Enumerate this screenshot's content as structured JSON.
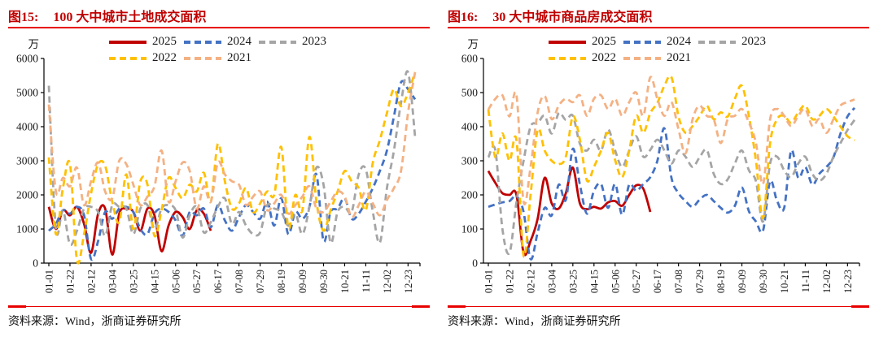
{
  "colors": {
    "title_red": "#C00000",
    "rule_red": "#E80000",
    "axis_black": "#000000",
    "series_2025": "#C00000",
    "series_2024": "#4472C4",
    "series_2023": "#A5A5A5",
    "series_2022": "#FFC000",
    "series_2021": "#F4B183"
  },
  "chart_data": [
    {
      "type": "line",
      "fig_label": "图15:",
      "title": "100 大中城市土地成交面积",
      "unit": "万",
      "source": "资料来源：Wind，浙商证券研究所",
      "ylim": [
        0,
        6000
      ],
      "ytick_step": 1000,
      "grid": false,
      "legend_position": "top-center",
      "weeks_per_tick": 3,
      "x_tick_labels": [
        "01-01",
        "01-22",
        "02-12",
        "03-04",
        "03-25",
        "04-15",
        "05-06",
        "05-27",
        "06-17",
        "07-08",
        "07-29",
        "08-19",
        "09-09",
        "09-30",
        "10-21",
        "11-11",
        "12-02",
        "12-23"
      ],
      "legend_rows": [
        [
          "2025",
          "2024",
          "2023"
        ],
        [
          "2022",
          "2021"
        ]
      ],
      "series": [
        {
          "name": "2025",
          "color": "#C00000",
          "dashed": false,
          "values": [
            1650,
            1000,
            1550,
            1400,
            1650,
            1150,
            300,
            1450,
            1600,
            250,
            1450,
            1600,
            1500,
            950,
            1600,
            1400,
            350,
            1100,
            1500,
            1350,
            1000,
            1550,
            1450,
            950
          ]
        },
        {
          "name": "2024",
          "color": "#4472C4",
          "dashed": true,
          "values": [
            950,
            1150,
            1550,
            1450,
            1650,
            1400,
            120,
            650,
            1500,
            1300,
            1600,
            1650,
            1500,
            1000,
            850,
            1450,
            1600,
            1500,
            1250,
            800,
            1500,
            1400,
            1600,
            1050,
            1700,
            1250,
            950,
            1350,
            1700,
            1500,
            1300,
            1800,
            1100,
            1900,
            850,
            1500,
            1300,
            1650,
            2600,
            650,
            1500,
            1600,
            1900,
            1300,
            1450,
            1800,
            2200,
            2700,
            3300,
            4300,
            5300,
            5100,
            4800
          ]
        },
        {
          "name": "2023",
          "color": "#A5A5A5",
          "dashed": true,
          "values": [
            5200,
            1000,
            1550,
            550,
            950,
            1600,
            1650,
            1500,
            800,
            1700,
            1650,
            1600,
            850,
            1600,
            1700,
            1000,
            1600,
            1700,
            1550,
            750,
            1400,
            1650,
            900,
            1200,
            1650,
            1900,
            1150,
            1500,
            1100,
            850,
            900,
            1700,
            1600,
            1500,
            1100,
            1450,
            850,
            1650,
            2800,
            2300,
            600,
            1500,
            1650,
            1500,
            2600,
            2750,
            1500,
            600,
            2200,
            3300,
            4700,
            5600,
            3700
          ]
        },
        {
          "name": "2022",
          "color": "#FFC000",
          "dashed": true,
          "values": [
            3100,
            850,
            2200,
            2900,
            80,
            850,
            2050,
            2900,
            2850,
            1800,
            1200,
            2600,
            1000,
            2400,
            2300,
            800,
            1550,
            2500,
            2200,
            1900,
            2300,
            2100,
            2650,
            1800,
            3500,
            2400,
            1600,
            1750,
            2200,
            1500,
            1750,
            2100,
            2000,
            3400,
            1050,
            2000,
            1550,
            3700,
            1800,
            950,
            1550,
            2100,
            2700,
            2400,
            2200,
            1550,
            2950,
            3600,
            4400,
            5100,
            4600,
            5000,
            5600
          ]
        },
        {
          "name": "2021",
          "color": "#F4B183",
          "dashed": true,
          "values": [
            4650,
            2100,
            2500,
            2250,
            2800,
            1700,
            2400,
            2950,
            2100,
            1900,
            3000,
            2900,
            2300,
            1700,
            1950,
            2250,
            3300,
            1800,
            2400,
            2950,
            2700,
            1600,
            2250,
            1800,
            2950,
            2600,
            2400,
            2300,
            1700,
            1950,
            2100,
            1550,
            1750,
            2000,
            1450,
            1700,
            1950,
            2250,
            1600,
            1500,
            1800,
            2100,
            1950,
            1350,
            1700,
            2100,
            1750,
            1400,
            1850,
            2200,
            2700,
            4400,
            5600
          ]
        }
      ]
    },
    {
      "type": "line",
      "fig_label": "图16:",
      "title": "30 大中城市商品房成交面积",
      "unit": "万",
      "source": "资料来源：Wind，浙商证券研究所",
      "ylim": [
        0,
        600
      ],
      "ytick_step": 100,
      "grid": false,
      "legend_position": "top-center",
      "weeks_per_tick": 3,
      "x_tick_labels": [
        "01-01",
        "01-22",
        "02-12",
        "03-04",
        "03-25",
        "04-15",
        "05-06",
        "05-27",
        "06-17",
        "07-08",
        "07-29",
        "08-19",
        "09-09",
        "09-30",
        "10-21",
        "11-11",
        "12-02",
        "12-23"
      ],
      "legend_rows": [
        [
          "2025",
          "2024",
          "2023"
        ],
        [
          "2022",
          "2021"
        ]
      ],
      "series": [
        {
          "name": "2025",
          "color": "#C00000",
          "dashed": false,
          "values": [
            270,
            235,
            205,
            200,
            200,
            30,
            65,
            130,
            250,
            175,
            160,
            205,
            280,
            175,
            158,
            165,
            160,
            178,
            182,
            168,
            200,
            228,
            218,
            150
          ]
        },
        {
          "name": "2024",
          "color": "#4472C4",
          "dashed": true,
          "values": [
            165,
            172,
            178,
            182,
            196,
            150,
            12,
            90,
            162,
            140,
            230,
            185,
            335,
            230,
            145,
            212,
            232,
            162,
            232,
            142,
            230,
            212,
            232,
            252,
            300,
            395,
            250,
            205,
            182,
            165,
            186,
            200,
            182,
            162,
            148,
            168,
            222,
            152,
            122,
            95,
            240,
            182,
            162,
            330,
            250,
            282,
            230,
            262,
            282,
            310,
            380,
            430,
            455
          ]
        },
        {
          "name": "2023",
          "color": "#A5A5A5",
          "dashed": true,
          "values": [
            310,
            330,
            100,
            30,
            180,
            300,
            400,
            410,
            432,
            380,
            440,
            420,
            432,
            350,
            330,
            362,
            330,
            392,
            330,
            282,
            330,
            372,
            312,
            332,
            362,
            330,
            292,
            330,
            312,
            282,
            310,
            332,
            262,
            232,
            246,
            292,
            330,
            272,
            240,
            122,
            292,
            312,
            272,
            252,
            292,
            312,
            262,
            242,
            262,
            312,
            352,
            390,
            420
          ]
        },
        {
          "name": "2022",
          "color": "#FFC000",
          "dashed": true,
          "values": [
            450,
            310,
            380,
            300,
            360,
            22,
            200,
            390,
            330,
            300,
            290,
            312,
            430,
            362,
            242,
            282,
            330,
            382,
            302,
            252,
            330,
            432,
            382,
            440,
            470,
            520,
            545,
            430,
            382,
            402,
            430,
            462,
            422,
            442,
            430,
            482,
            520,
            430,
            300,
            132,
            352,
            422,
            432,
            412,
            442,
            462,
            422,
            432,
            452,
            430,
            400,
            372,
            360
          ]
        },
        {
          "name": "2021",
          "color": "#F4B183",
          "dashed": true,
          "values": [
            450,
            482,
            492,
            430,
            492,
            180,
            282,
            442,
            490,
            422,
            462,
            482,
            472,
            492,
            432,
            482,
            492,
            452,
            482,
            432,
            472,
            500,
            432,
            545,
            482,
            432,
            472,
            392,
            322,
            422,
            462,
            432,
            422,
            352,
            422,
            432,
            452,
            412,
            352,
            232,
            422,
            452,
            432,
            402,
            432,
            452,
            402,
            422,
            382,
            422,
            462,
            472,
            480
          ]
        }
      ]
    }
  ]
}
